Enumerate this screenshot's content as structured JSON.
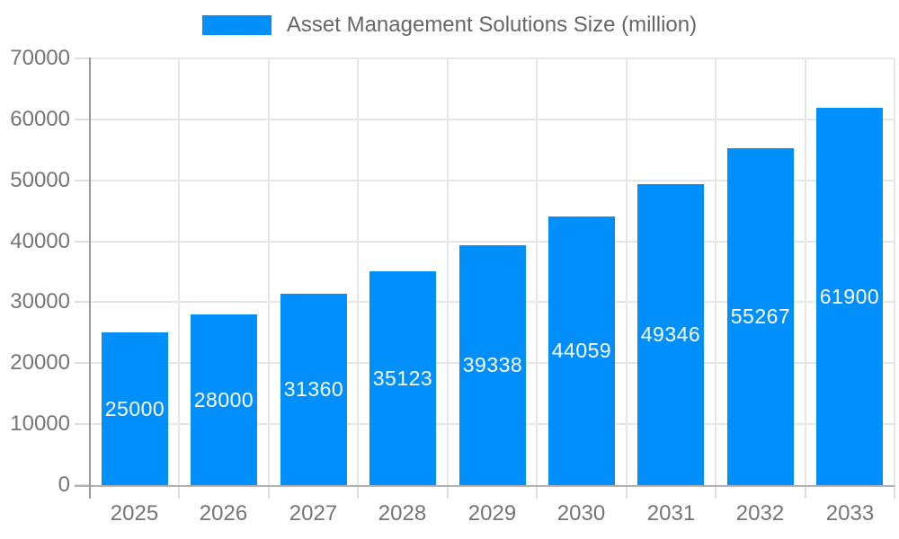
{
  "chart_data": {
    "type": "bar",
    "title": "Asset Management Solutions Size (million)",
    "categories": [
      "2025",
      "2026",
      "2027",
      "2028",
      "2029",
      "2030",
      "2031",
      "2032",
      "2033"
    ],
    "values": [
      25000,
      28000,
      31360,
      35123,
      39338,
      44059,
      49346,
      55267,
      61900
    ],
    "series": [
      {
        "name": "Asset Management Solutions Size (million)",
        "values": [
          25000,
          28000,
          31360,
          35123,
          39338,
          44059,
          49346,
          55267,
          61900
        ]
      }
    ],
    "value_labels": [
      "25000",
      "28000",
      "31360",
      "35123",
      "39338",
      "44059",
      "49346",
      "55267",
      "61900"
    ],
    "xlabel": "",
    "ylabel": "",
    "ylim": [
      0,
      70000
    ],
    "ytick_step": 10000,
    "ytick_labels": [
      "0",
      "10000",
      "20000",
      "30000",
      "40000",
      "50000",
      "60000",
      "70000"
    ],
    "grid": true,
    "legend_position": "top-center",
    "colors": {
      "bar": "#0190FB",
      "value_label": "#FFFFFF",
      "axis_label": "#757575",
      "title": "#666666",
      "grid": "#E6E6E6",
      "tick": "#DEDEDE",
      "y_axis_line": "#999999",
      "x_axis_line": "#B0B0B0",
      "background": "#FFFFFF"
    }
  }
}
